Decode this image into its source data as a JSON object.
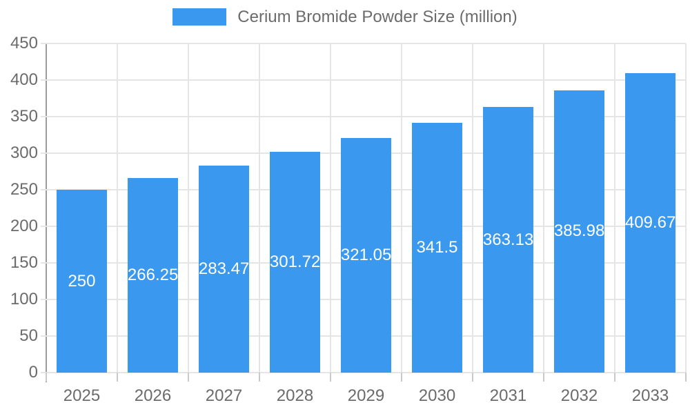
{
  "legend": {
    "swatch_color": "#3a99ee"
  },
  "chart_data": {
    "type": "bar",
    "title": "Cerium Bromide Powder Size (million)",
    "xlabel": "",
    "ylabel": "",
    "categories": [
      "2025",
      "2026",
      "2027",
      "2028",
      "2029",
      "2030",
      "2031",
      "2032",
      "2033"
    ],
    "values": [
      250,
      266.25,
      283.47,
      301.72,
      321.05,
      341.5,
      363.13,
      385.98,
      409.67
    ],
    "value_labels": [
      "250",
      "266.25",
      "283.47",
      "301.72",
      "321.05",
      "341.5",
      "363.13",
      "385.98",
      "409.67"
    ],
    "ylim": [
      0,
      450
    ],
    "ytick_step": 50,
    "yticks": [
      0,
      50,
      100,
      150,
      200,
      250,
      300,
      350,
      400,
      450
    ],
    "grid": true,
    "legend_position": "top",
    "colors": {
      "bar": "#3a99ee",
      "value_label": "#ffffff",
      "axis_text": "#6b6b6b",
      "gridline": "#e5e5e5",
      "axis_line": "#9b9b9b",
      "tick": "#c9c9c9"
    }
  }
}
